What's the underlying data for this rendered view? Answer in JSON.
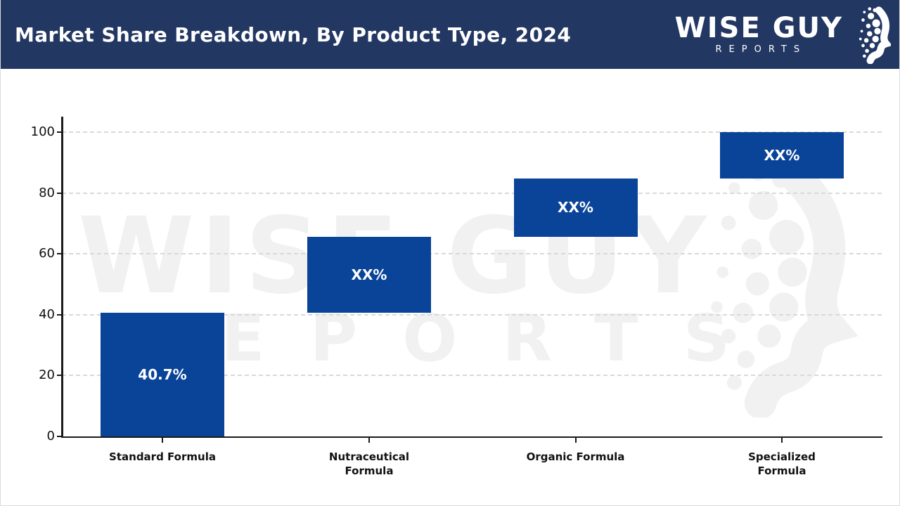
{
  "header": {
    "title": "Market Share Breakdown, By Product Type, 2024",
    "logo": {
      "line1": "WISE GUY",
      "line2": "REPORTS"
    }
  },
  "watermark": {
    "line1": "WISE GUY",
    "line2": "REPORTS"
  },
  "colors": {
    "header_bg": "#233763",
    "bar": "#0a4499",
    "bar_label": "#ffffff",
    "grid": "#d9d9d9",
    "axis": "#1a1a1a",
    "tick_text": "#111111",
    "watermark": "#f1f1f1"
  },
  "chart_data": {
    "type": "bar",
    "subtype": "floating-waterfall",
    "title": "Market Share Breakdown, By Product Type, 2024",
    "categories": [
      "Standard Formula",
      "Nutraceutical Formula",
      "Organic Formula",
      "Specialized Formula"
    ],
    "category_lines": [
      [
        "Standard Formula"
      ],
      [
        "Nutraceutical",
        "Formula"
      ],
      [
        "Organic Formula"
      ],
      [
        "Specialized",
        "Formula"
      ]
    ],
    "segments": [
      {
        "category": "Standard Formula",
        "start": 0,
        "end": 40.7,
        "label": "40.7%"
      },
      {
        "category": "Nutraceutical Formula",
        "start": 40.7,
        "end": 65.6,
        "label": "XX%"
      },
      {
        "category": "Organic Formula",
        "start": 65.6,
        "end": 84.8,
        "label": "XX%"
      },
      {
        "category": "Specialized Formula",
        "start": 84.8,
        "end": 100,
        "label": "XX%"
      }
    ],
    "values_masked": true,
    "xlabel": "",
    "ylabel": "",
    "yticks": [
      0,
      20,
      40,
      60,
      80,
      100
    ],
    "ylim": [
      0,
      105
    ],
    "grid": {
      "axis": "y",
      "style": "dashed"
    },
    "legend": null
  }
}
